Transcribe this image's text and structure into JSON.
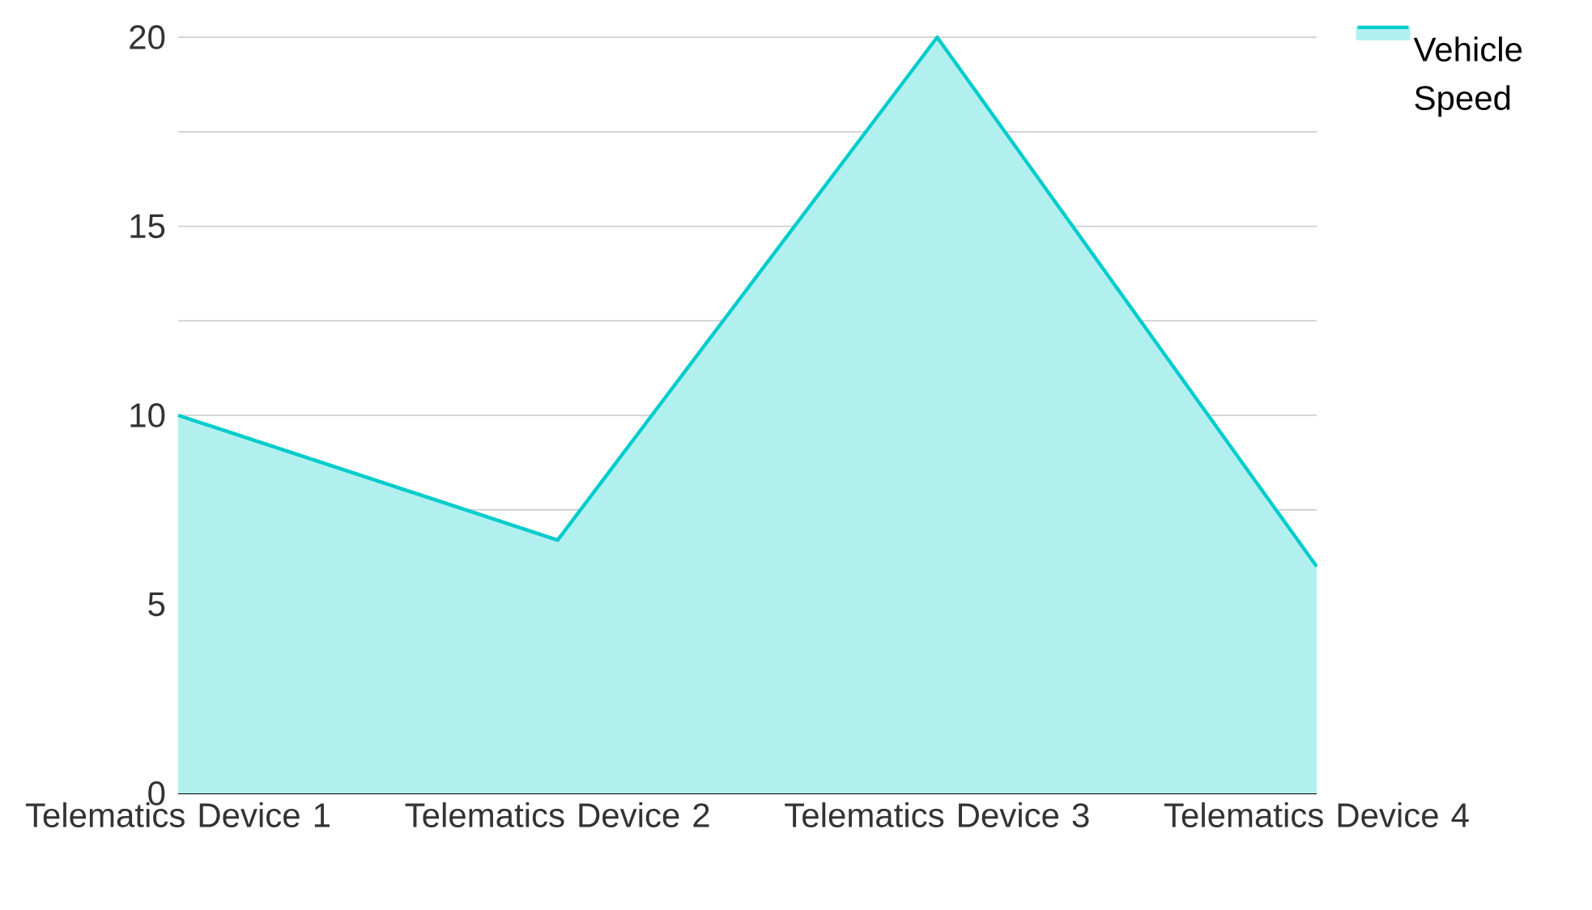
{
  "chart_data": {
    "type": "area",
    "categories": [
      "Telematics Device 1",
      "Telematics Device 2",
      "Telematics Device 3",
      "Telematics Device 4"
    ],
    "series": [
      {
        "name": "Vehicle Speed",
        "color": "#00cccc",
        "values": [
          10,
          6.7,
          20,
          6
        ]
      }
    ],
    "ylim": [
      0,
      20
    ],
    "yticks": [
      0,
      {
        "value": 2.5,
        "label": null
      },
      5,
      {
        "value": 7.5,
        "label": null
      },
      10,
      {
        "value": 12.5,
        "label": null
      },
      15,
      {
        "value": 17.5,
        "label": null
      },
      20
    ],
    "grid": "y",
    "legend": "top right"
  }
}
